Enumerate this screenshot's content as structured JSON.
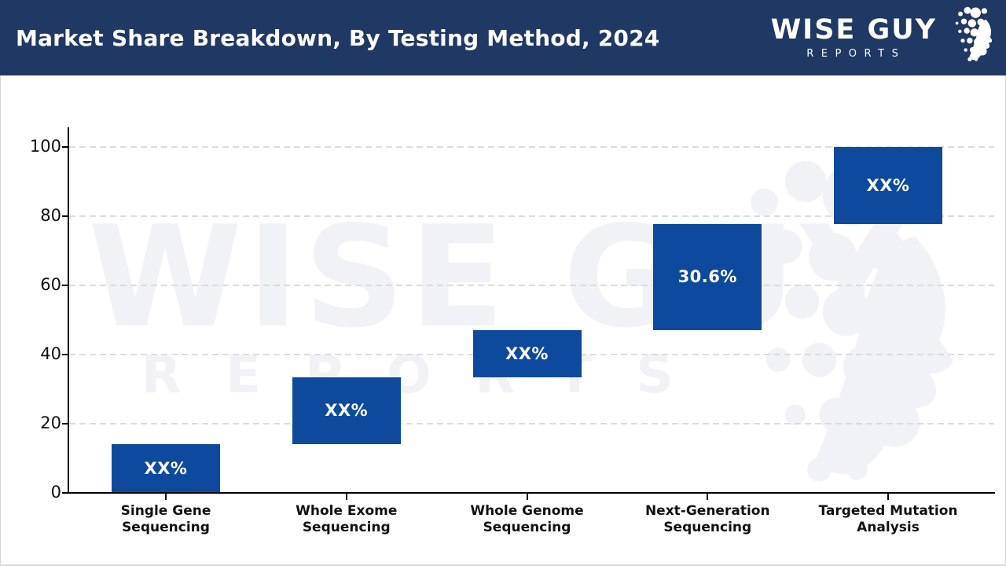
{
  "header": {
    "title": "Market Share Breakdown, By Testing Method, 2024",
    "brand": {
      "name": "WISE GUY",
      "sub": "REPORTS"
    },
    "bg_color": "#1F3864"
  },
  "watermark": {
    "line1": "WISE GUY",
    "line2": "REPORTS"
  },
  "chart_data": {
    "type": "bar",
    "subtype": "waterfall",
    "title": "Market Share Breakdown, By Testing Method, 2024",
    "categories": [
      "Single Gene Sequencing",
      "Whole Exome Sequencing",
      "Whole Genome Sequencing",
      "Next-Generation Sequencing",
      "Targeted Mutation Analysis"
    ],
    "category_label_lines": [
      [
        "Single Gene",
        "Sequencing"
      ],
      [
        "Whole Exome",
        "Sequencing"
      ],
      [
        "Whole Genome",
        "Sequencing"
      ],
      [
        "Next-Generation",
        "Sequencing"
      ],
      [
        "Targeted Mutation",
        "Analysis"
      ]
    ],
    "bars": [
      {
        "category": "Single Gene Sequencing",
        "start": 0,
        "end": 14,
        "value_label": "XX%"
      },
      {
        "category": "Whole Exome Sequencing",
        "start": 14,
        "end": 33.4,
        "value_label": "XX%"
      },
      {
        "category": "Whole Genome Sequencing",
        "start": 33.4,
        "end": 47,
        "value_label": "XX%"
      },
      {
        "category": "Next-Generation Sequencing",
        "start": 47,
        "end": 77.6,
        "value_label": "30.6%",
        "value": 30.6
      },
      {
        "category": "Targeted Mutation Analysis",
        "start": 77.6,
        "end": 100,
        "value_label": "XX%"
      }
    ],
    "xlabel": "",
    "ylabel": "",
    "ylim": [
      0,
      100
    ],
    "yticks": [
      0,
      20,
      40,
      60,
      80,
      100
    ],
    "grid": {
      "horizontal": true,
      "style": "dashed",
      "color": "#DCDCDC"
    },
    "legend": "none",
    "bar_color": "#0D4A9E",
    "value_label_color": "#FFFFFF",
    "axis_color": "#000000"
  }
}
